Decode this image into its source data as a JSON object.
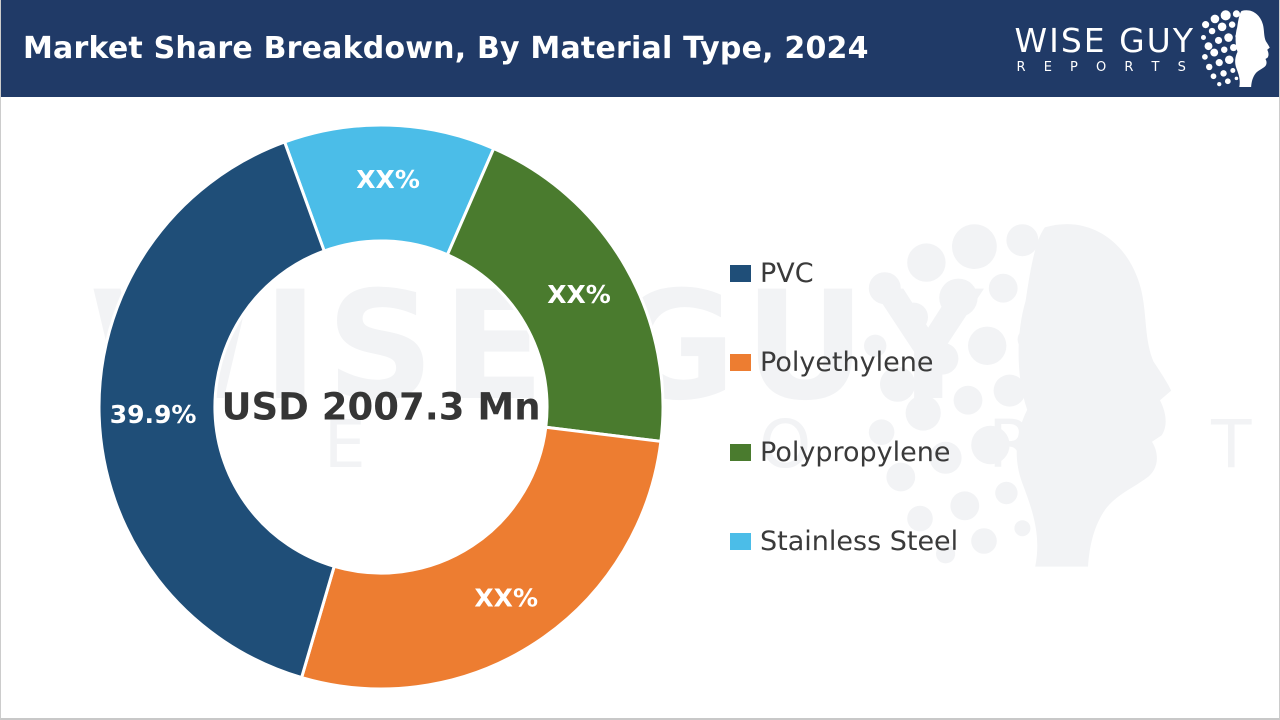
{
  "header": {
    "title": "Market Share Breakdown, By Material Type, 2024",
    "brand": {
      "name_line": "WISE GUY",
      "reports_line": "R E P O R T S"
    }
  },
  "watermark": {
    "name_line": "WISE GUY",
    "reports_line": "R E P O R T S"
  },
  "colors": {
    "header_bar": "#203a67",
    "legend_text": "#3a3a3a",
    "center_text": "#353535",
    "slice_label_text": "#ffffff"
  },
  "chart_data": {
    "type": "pie",
    "subtype": "donut",
    "title": "Market Share Breakdown, By Material Type, 2024",
    "center_label": "USD 2007.3 Mn",
    "direction": "clockwise",
    "start_angle_deg": -20,
    "slices_clockwise_from_top": [
      {
        "name": "Stainless Steel",
        "label": "XX%",
        "approx_pct": 12.1,
        "color": "#4bbde8"
      },
      {
        "name": "Polypropylene",
        "label": "XX%",
        "approx_pct": 20.4,
        "color": "#4a7b2e"
      },
      {
        "name": "Polyethylene",
        "label": "XX%",
        "approx_pct": 27.6,
        "color": "#ed7d31"
      },
      {
        "name": "PVC",
        "label": "39.9%",
        "approx_pct": 39.9,
        "color": "#1f4e78"
      }
    ],
    "legend_order": [
      "PVC",
      "Polyethylene",
      "Polypropylene",
      "Stainless Steel"
    ],
    "legend_position": "right"
  }
}
